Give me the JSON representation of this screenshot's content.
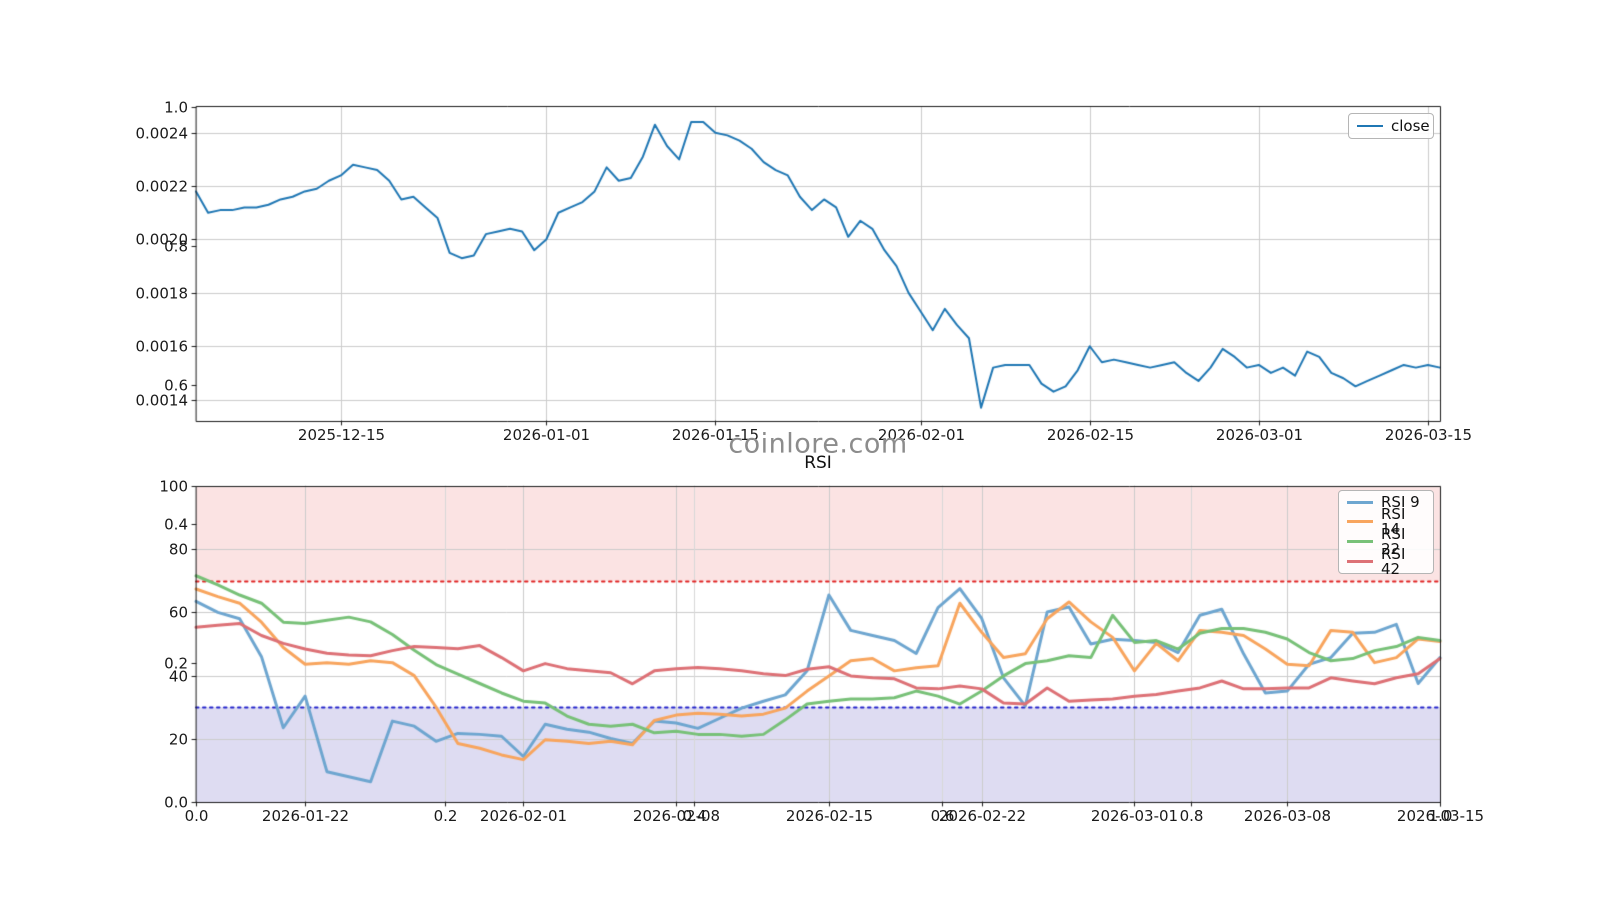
{
  "watermark": "coinlore.com",
  "colors": {
    "figure_background": "#ffffff",
    "grid": "#cccccc",
    "background_grid": "#d8d8d8",
    "spine": "#1a1a1a",
    "text": "#1a1a1a",
    "watermark": "#8c8c8c",
    "overbought_band": "#fbe3e3",
    "oversold_band": "#dedcf2",
    "overbought_line": "#e02424",
    "oversold_line": "#2424cc"
  },
  "background_axis": {
    "x_tick_labels": [
      "0.0",
      "0.2",
      "0.4",
      "0.6",
      "0.8",
      "1.0"
    ],
    "y_tick_labels": [
      "0.0",
      "0.2",
      "0.4",
      "0.6",
      "0.8",
      "1.0"
    ]
  },
  "chart_data": [
    {
      "type": "line",
      "title": "",
      "x_start_date": "2025-12-03",
      "x_frequency": "daily",
      "x_tick_labels": [
        "2025-12-15",
        "2026-01-01",
        "2026-01-15",
        "2026-02-01",
        "2026-02-15",
        "2026-03-01",
        "2026-03-15"
      ],
      "x_tick_day_indices": [
        12,
        29,
        43,
        60,
        74,
        88,
        102
      ],
      "y_tick_labels": [
        "0.0014",
        "0.0016",
        "0.0018",
        "0.0020",
        "0.0022",
        "0.0024"
      ],
      "y_tick_values": [
        0.0014,
        0.0016,
        0.0018,
        0.002,
        0.0022,
        0.0024
      ],
      "ylim": [
        0.00132,
        0.0025
      ],
      "grid": true,
      "legend_position": "upper right",
      "series": [
        {
          "name": "close",
          "color": "#1f77b4",
          "line_width": 2,
          "values": [
            0.00218,
            0.0021,
            0.00211,
            0.00211,
            0.00212,
            0.00212,
            0.00213,
            0.00215,
            0.00216,
            0.00218,
            0.00219,
            0.00222,
            0.00224,
            0.00228,
            0.00227,
            0.00226,
            0.00222,
            0.00215,
            0.00216,
            0.00212,
            0.00208,
            0.00195,
            0.00193,
            0.00194,
            0.00202,
            0.00203,
            0.00204,
            0.00203,
            0.00196,
            0.002,
            0.0021,
            0.00212,
            0.00214,
            0.00218,
            0.00227,
            0.00222,
            0.00223,
            0.00231,
            0.00243,
            0.00235,
            0.0023,
            0.00244,
            0.00244,
            0.0024,
            0.00239,
            0.00237,
            0.00234,
            0.00229,
            0.00226,
            0.00224,
            0.00216,
            0.00211,
            0.00215,
            0.00212,
            0.00201,
            0.00207,
            0.00204,
            0.00196,
            0.0019,
            0.0018,
            0.00173,
            0.00166,
            0.00174,
            0.00168,
            0.00163,
            0.00137,
            0.00152,
            0.00153,
            0.00153,
            0.00153,
            0.00146,
            0.00143,
            0.00145,
            0.00151,
            0.0016,
            0.00154,
            0.00155,
            0.00154,
            0.00153,
            0.00152,
            0.00153,
            0.00154,
            0.0015,
            0.00147,
            0.00152,
            0.00159,
            0.00156,
            0.00152,
            0.00153,
            0.0015,
            0.00152,
            0.00149,
            0.00158,
            0.00156,
            0.0015,
            0.00148,
            0.00145,
            0.00147,
            0.00149,
            0.00151,
            0.00153,
            0.00152,
            0.00153,
            0.00152
          ]
        }
      ]
    },
    {
      "type": "line",
      "title": "RSI",
      "x_start_date": "2026-01-17",
      "x_frequency": "daily",
      "x_tick_labels": [
        "2026-01-22",
        "2026-02-01",
        "2026-02-08",
        "2026-02-15",
        "2026-02-22",
        "2026-03-01",
        "2026-03-08",
        "2026-03-15"
      ],
      "x_tick_day_indices": [
        5,
        15,
        22,
        29,
        36,
        43,
        50,
        57
      ],
      "y_tick_labels": [
        "20",
        "40",
        "60",
        "80",
        "100"
      ],
      "y_tick_values": [
        20,
        40,
        60,
        80,
        100
      ],
      "ylim": [
        0,
        100
      ],
      "grid": true,
      "overbought_level": 70,
      "oversold_level": 30,
      "bands": [
        {
          "from": 70,
          "to": 100,
          "color": "#fbe3e3"
        },
        {
          "from": 0,
          "to": 30,
          "color": "#dedcf2"
        }
      ],
      "hlines": [
        {
          "y": 70,
          "color": "#e02424",
          "style": "dotted"
        },
        {
          "y": 30,
          "color": "#2424cc",
          "style": "dotted"
        }
      ],
      "legend_position": "upper right",
      "series": [
        {
          "name": "RSI 9",
          "color": "#6ea6d0",
          "line_width": 3,
          "values": [
            63.5,
            60,
            58,
            46,
            23.5,
            33.5,
            9.6,
            8,
            6.4,
            25.6,
            24,
            19.2,
            21.7,
            21.4,
            20.8,
            14.4,
            24.6,
            23,
            22.1,
            20.1,
            18.5,
            25.6,
            25,
            23.3,
            26.5,
            29.7,
            31.9,
            33.9,
            41.5,
            65.5,
            54.3,
            52.7,
            51.1,
            47,
            61.5,
            67.5,
            58.1,
            39.3,
            30.4,
            60.1,
            61.7,
            50,
            51.5,
            51.1,
            50.5,
            47.3,
            59.1,
            61,
            46.9,
            34.5,
            35.1,
            43.6,
            45.7,
            53.4,
            53.7,
            56.2,
            37.5,
            45.7
          ]
        },
        {
          "name": "RSI 14",
          "color": "#f8a55e",
          "line_width": 3,
          "values": [
            67.4,
            65,
            62.9,
            56.9,
            48.9,
            43.6,
            44.1,
            43.6,
            44.7,
            44.1,
            40,
            30,
            18.5,
            17,
            14.9,
            13.4,
            19.7,
            19.2,
            18.5,
            19.2,
            18.1,
            25.8,
            27.5,
            28.1,
            27.8,
            27.2,
            27.8,
            29.7,
            35.1,
            39.9,
            44.7,
            45.4,
            41.5,
            42.5,
            43.1,
            62.9,
            53.7,
            45.7,
            46.9,
            58,
            63.3,
            57,
            52.1,
            41.5,
            50.2,
            44.7,
            54.3,
            53.7,
            52.7,
            48.4,
            43.6,
            43.1,
            54.3,
            53.7,
            44.1,
            45.7,
            51.6,
            50.8
          ]
        },
        {
          "name": "RSI 22",
          "color": "#78c178",
          "line_width": 3,
          "values": [
            71.6,
            68.7,
            65.5,
            62.9,
            56.9,
            56.5,
            57.5,
            58.5,
            57,
            53,
            48,
            43.5,
            40.5,
            37.5,
            34.5,
            31.9,
            31.3,
            27.2,
            24.6,
            24,
            24.6,
            21.9,
            22.4,
            21.4,
            21.4,
            20.8,
            21.4,
            26,
            31,
            31.9,
            32.6,
            32.6,
            33,
            35.1,
            33.5,
            31,
            35.1,
            39.9,
            43.8,
            44.7,
            46.3,
            45.7,
            59.1,
            50.5,
            51.1,
            48.4,
            53.4,
            54.9,
            54.9,
            53.7,
            51.6,
            47.3,
            44.7,
            45.4,
            47.9,
            49.2,
            52.1,
            51.1
          ]
        },
        {
          "name": "RSI 42",
          "color": "#dd7176",
          "line_width": 3,
          "values": [
            55.3,
            55.9,
            56.5,
            52.7,
            50.2,
            48.4,
            47.1,
            46.5,
            46.3,
            47.9,
            49.2,
            48.9,
            48.5,
            49.5,
            45.7,
            41.5,
            43.8,
            42.2,
            41.5,
            40.9,
            37.4,
            41.5,
            42.2,
            42.6,
            42.2,
            41.5,
            40.6,
            40,
            42,
            42.8,
            39.9,
            39.3,
            39,
            36.1,
            35.8,
            36.7,
            35.8,
            31.3,
            31,
            36.1,
            31.9,
            32.3,
            32.6,
            33.5,
            34,
            35.1,
            36.1,
            38.3,
            35.8,
            35.8,
            36.1,
            36.1,
            39.3,
            38.3,
            37.4,
            39.3,
            40.6,
            45.4
          ]
        }
      ]
    }
  ]
}
